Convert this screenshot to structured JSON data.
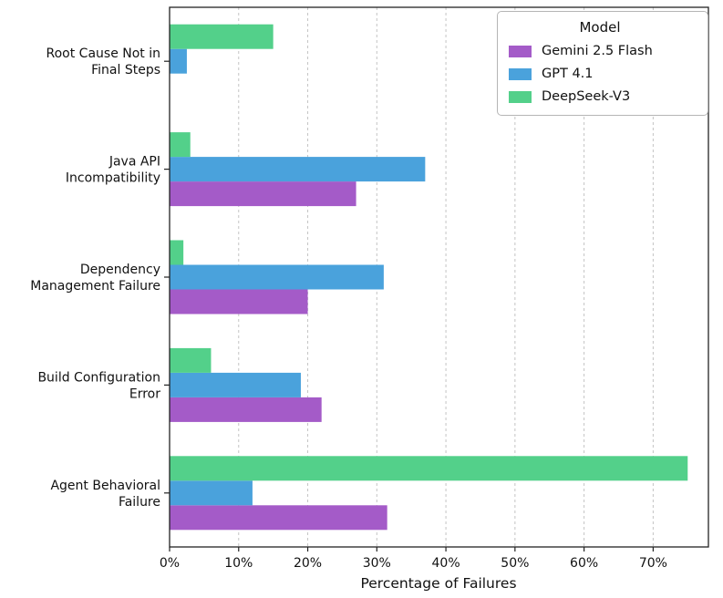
{
  "chart_data": {
    "type": "bar",
    "orientation": "horizontal",
    "title": "",
    "xlabel": "Percentage of Failures",
    "ylabel": "",
    "xlim": [
      0,
      78
    ],
    "xticks": [
      0,
      10,
      20,
      30,
      40,
      50,
      60,
      70
    ],
    "xtick_labels": [
      "0%",
      "10%",
      "20%",
      "30%",
      "40%",
      "50%",
      "60%",
      "70%"
    ],
    "grid": "vertical-dashed",
    "legend_title": "Model",
    "legend_position": "upper right",
    "categories": [
      "Root Cause Not in\nFinal Steps",
      "Java API\nIncompatibility",
      "Dependency\nManagement Failure",
      "Build Configuration\nError",
      "Agent Behavioral\nFailure"
    ],
    "series": [
      {
        "name": "Gemini 2.5 Flash",
        "color": "#a45bc8",
        "values": [
          0,
          27,
          20,
          22,
          31.5
        ]
      },
      {
        "name": "GPT 4.1",
        "color": "#4aa2dc",
        "values": [
          2.5,
          37,
          31,
          19,
          12
        ]
      },
      {
        "name": "DeepSeek-V3",
        "color": "#53d08a",
        "values": [
          15,
          3,
          2,
          6,
          75
        ]
      }
    ]
  }
}
